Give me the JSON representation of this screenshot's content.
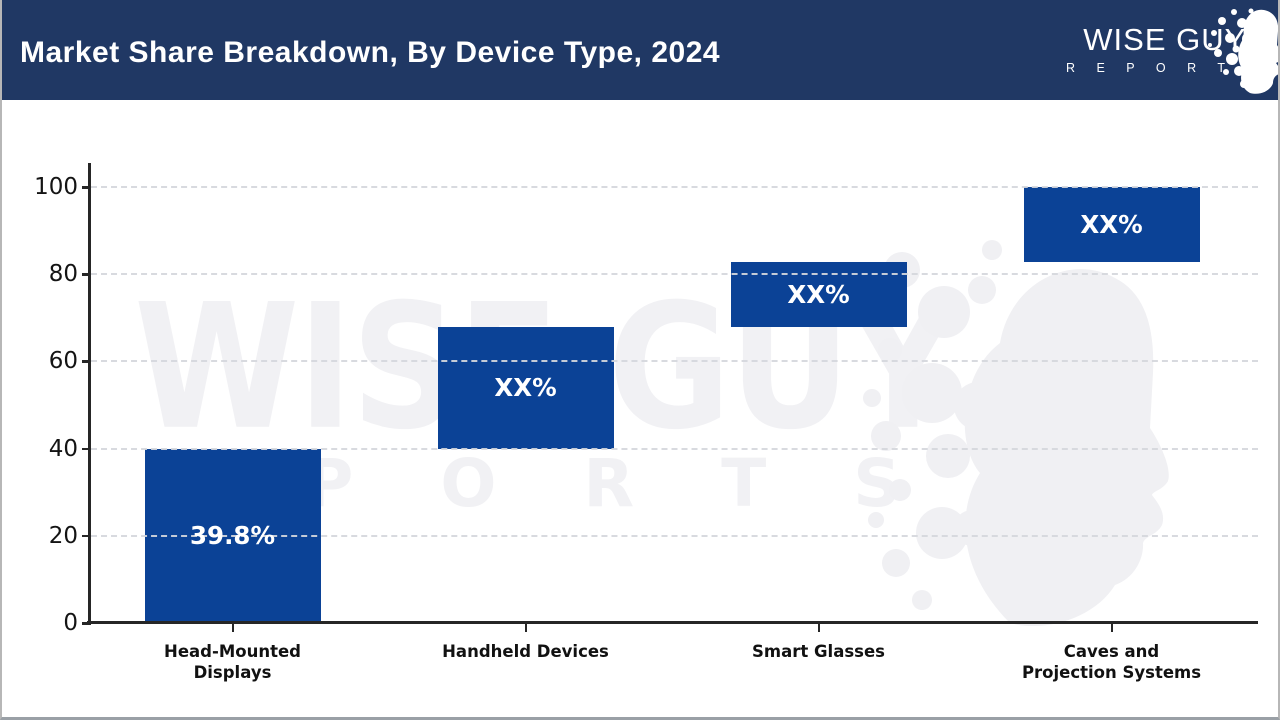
{
  "header": {
    "title": "Market Share Breakdown, By Device Type, 2024",
    "logo": {
      "line1": "WISE GUY",
      "line2": "R E P O R T S"
    }
  },
  "watermark": {
    "line1": "WISE GUY",
    "line2": "P O R T S"
  },
  "chart_data": {
    "type": "bar",
    "subtype": "waterfall-floating-bars",
    "title": "Market Share Breakdown, By Device Type, 2024",
    "xlabel": "",
    "ylabel": "",
    "ylim": [
      0,
      105
    ],
    "yticks": [
      0,
      20,
      40,
      60,
      80,
      100
    ],
    "grid": "horizontal-dashed",
    "legend": "none",
    "categories": [
      {
        "lines": [
          "Head-Mounted",
          "Displays"
        ]
      },
      {
        "lines": [
          "Handheld Devices"
        ]
      },
      {
        "lines": [
          "Smart Glasses"
        ]
      },
      {
        "lines": [
          "Caves and",
          "Projection Systems"
        ]
      }
    ],
    "segments": [
      {
        "start": 0,
        "end": 39.8,
        "label": "39.8%"
      },
      {
        "start": 39.8,
        "end": 67.8,
        "label": "XX%"
      },
      {
        "start": 67.8,
        "end": 82.7,
        "label": "XX%"
      },
      {
        "start": 82.7,
        "end": 100,
        "label": "XX%"
      }
    ]
  },
  "colors": {
    "header_background": "#203864",
    "bar_fill": "#0b4296",
    "bar_label_text": "#ffffff",
    "gridline": "#d5d7dc",
    "axis": "#262626",
    "watermark": "#f1f1f4"
  }
}
